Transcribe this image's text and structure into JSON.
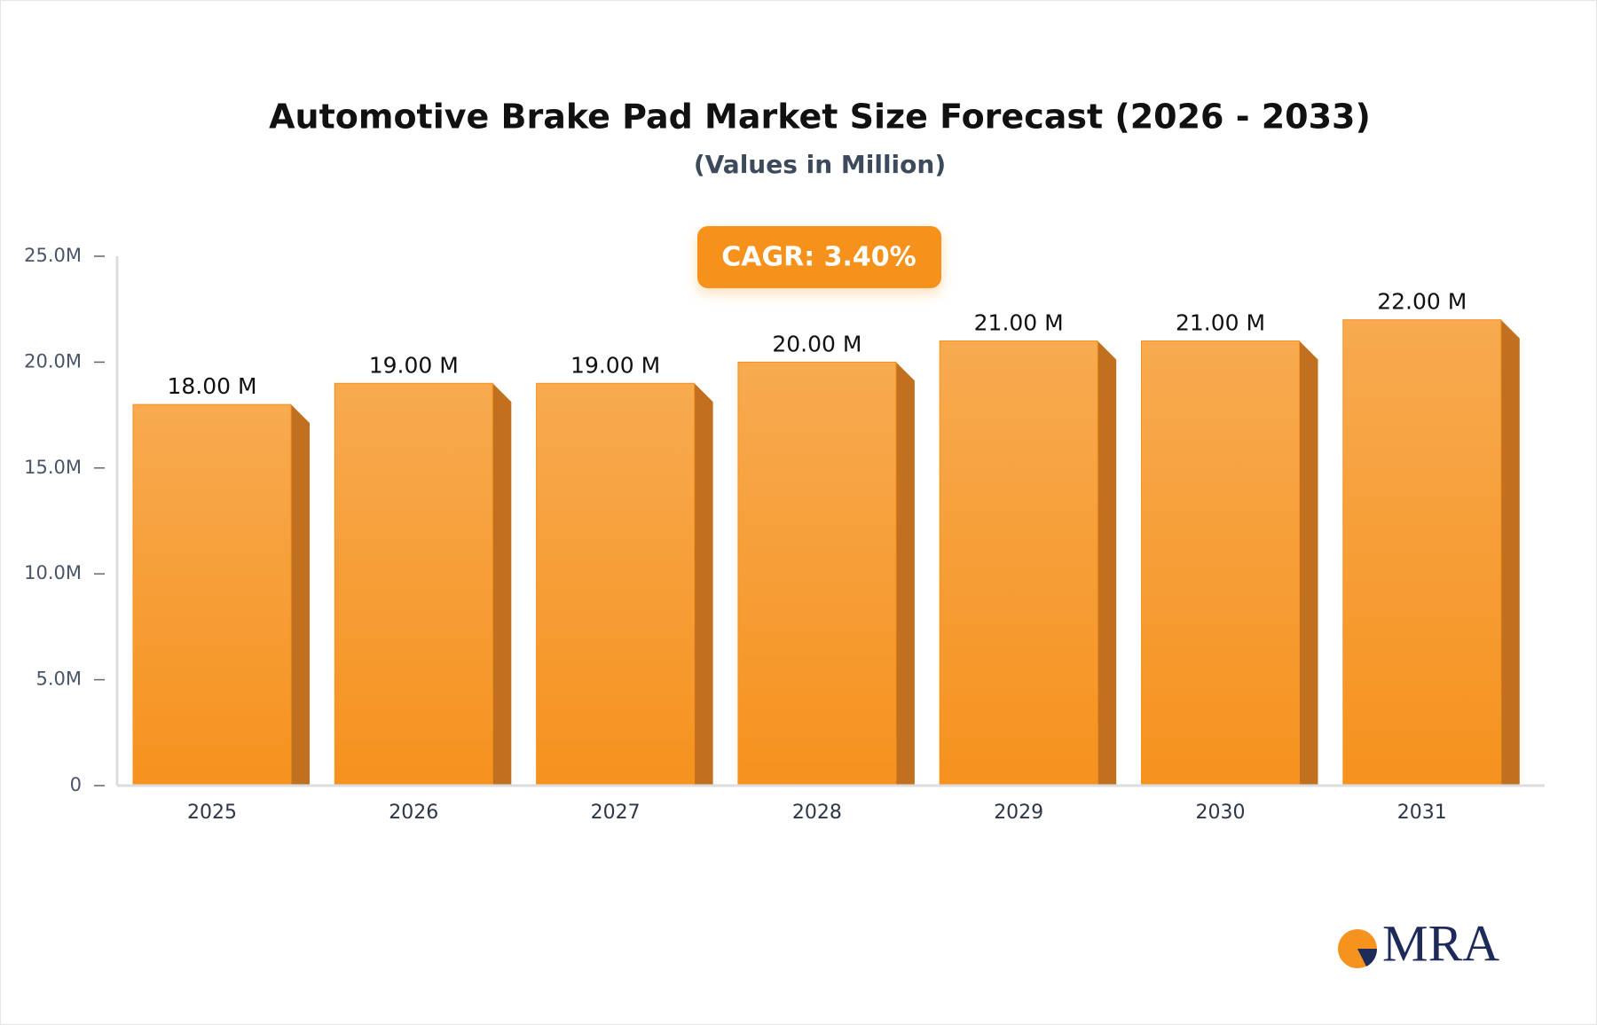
{
  "chart_data": {
    "type": "bar",
    "title": "Automotive Brake Pad Market Size Forecast (2026 - 2033)",
    "subtitle": "(Values in Million)",
    "annotation": "CAGR: 3.40%",
    "logo": "MRA",
    "categories": [
      "2025",
      "2026",
      "2027",
      "2028",
      "2029",
      "2030",
      "2031"
    ],
    "values": [
      18,
      19,
      19,
      20,
      21,
      21,
      22
    ],
    "value_labels": [
      "18.00 M",
      "19.00 M",
      "19.00 M",
      "20.00 M",
      "21.00 M",
      "21.00 M",
      "22.00 M"
    ],
    "color": "#f6921e",
    "ylim": [
      0,
      25
    ],
    "yticks": [
      0,
      {
        "value": 5,
        "label": "5.0M"
      },
      {
        "value": 10,
        "label": "10.0M"
      },
      {
        "value": 15,
        "label": "15.0M"
      },
      {
        "value": 20,
        "label": "20.0M"
      },
      {
        "value": 25,
        "label": "25.0M"
      }
    ]
  }
}
